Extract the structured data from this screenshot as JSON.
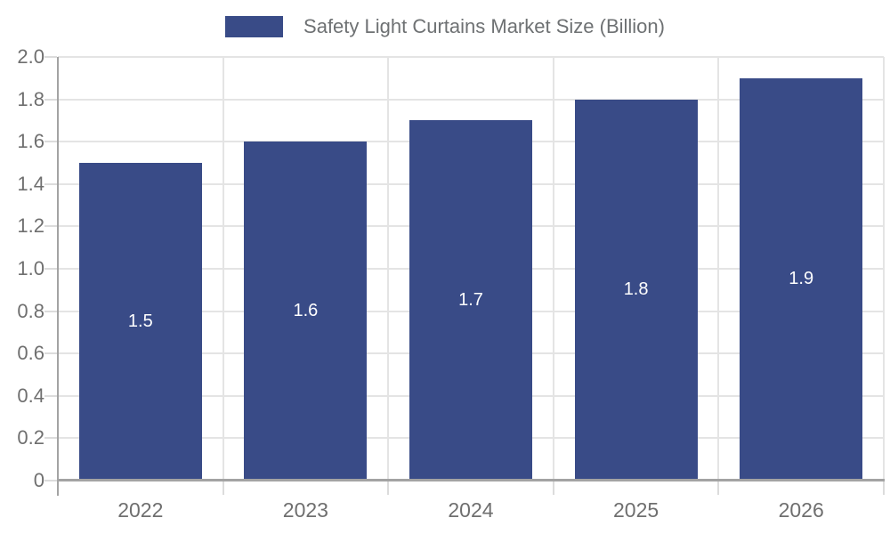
{
  "chart_data": {
    "type": "bar",
    "title": "Safety Light Curtains Market Size (Billion)",
    "categories": [
      "2022",
      "2023",
      "2024",
      "2025",
      "2026"
    ],
    "values": [
      1.5,
      1.6,
      1.7,
      1.8,
      1.9
    ],
    "value_labels": [
      "1.5",
      "1.6",
      "1.7",
      "1.8",
      "1.9"
    ],
    "xlabel": "",
    "ylabel": "",
    "ylim": [
      0,
      2.0
    ],
    "ytick_step": 0.2,
    "ytick_labels": [
      "0",
      "0.2",
      "0.4",
      "0.6",
      "0.8",
      "1.0",
      "1.2",
      "1.4",
      "1.6",
      "1.8",
      "2.0"
    ],
    "grid": true,
    "legend_position": "top",
    "colors": {
      "bar": "#394B87",
      "bar_value_text": "#ffffff",
      "grid_line": "#e4e4e4",
      "outer_tick": "#dcdcdc",
      "axis_line": "#a3a3a3",
      "tick_text": "#6f6f6f",
      "legend_text": "#6e7173",
      "background": "#ffffff"
    }
  }
}
